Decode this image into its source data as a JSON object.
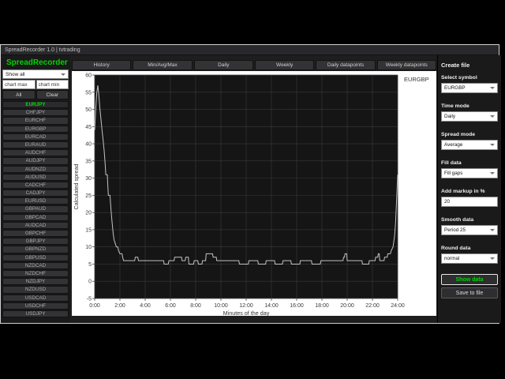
{
  "window": {
    "title": "SpreadRecorder 1.0 | tvtrading",
    "app_title": "SpreadRecorder"
  },
  "colors": {
    "accent_green": "#00d400",
    "titlebar_bg": "#29292d",
    "window_bg": "#1e1e1e",
    "chart_margin_bg": "#ffffff",
    "plot_bg": "#151515",
    "grid_color": "#3a3a3a",
    "line_color": "#c4c4c4",
    "tick_label_color": "#3c3c3c"
  },
  "left_panel": {
    "filter_dropdown": {
      "value": "Show all"
    },
    "chart_max_placeholder": "chart max",
    "chart_min_placeholder": "chart min",
    "all_button": "All",
    "clear_button": "Clear",
    "selected_symbol": "EURJPY",
    "symbols": [
      "EURJPY",
      "CHFJPY",
      "EURCHF",
      "EURGBP",
      "EURCAD",
      "EURAUD",
      "AUDCHF",
      "AUDJPY",
      "AUDNZD",
      "AUDUSD",
      "CADCHF",
      "CADJPY",
      "EURUSD",
      "GBPAUD",
      "GBPCAD",
      "AUDCAD",
      "GBPCHF",
      "GBPJPY",
      "GBPNZD",
      "GBPUSD",
      "NZDCAD",
      "NZDCHF",
      "NZDJPY",
      "NZDUSD",
      "USDCAD",
      "USDCHF",
      "USDJPY"
    ]
  },
  "tabs": [
    "History",
    "Min/Avg/Max",
    "Daily",
    "Weekly",
    "Daily datapoints",
    "Weekly datapoints"
  ],
  "chart_data": {
    "type": "line",
    "legend": "EURGBP",
    "legend_position": "top-right",
    "xlabel": "Minutes of the day",
    "ylabel": "Calculated spread",
    "xlim": [
      0,
      24
    ],
    "ylim": [
      -5,
      60
    ],
    "grid": true,
    "x_tick_hours": [
      0,
      2,
      4,
      6,
      8,
      10,
      12,
      14,
      16,
      18,
      20,
      22,
      24
    ],
    "x_tick_labels": [
      "0:00",
      "2:00",
      "4:00",
      "6:00",
      "8:00",
      "10:00",
      "12:00",
      "14:00",
      "16:00",
      "18:00",
      "20:00",
      "22:00",
      "24:00"
    ],
    "y_ticks": [
      60,
      55,
      50,
      45,
      40,
      35,
      30,
      25,
      20,
      15,
      10,
      5,
      0,
      -5
    ],
    "series": [
      {
        "name": "EURGBP",
        "points": [
          [
            0,
            44
          ],
          [
            0.08,
            50
          ],
          [
            0.17,
            55
          ],
          [
            0.25,
            57
          ],
          [
            0.33,
            54
          ],
          [
            0.42,
            50
          ],
          [
            0.5,
            47
          ],
          [
            0.58,
            44
          ],
          [
            0.67,
            41
          ],
          [
            0.75,
            38
          ],
          [
            0.83,
            34
          ],
          [
            0.88,
            31
          ],
          [
            1.0,
            31
          ],
          [
            1.04,
            28
          ],
          [
            1.08,
            25
          ],
          [
            1.21,
            25
          ],
          [
            1.29,
            21
          ],
          [
            1.38,
            17
          ],
          [
            1.46,
            14
          ],
          [
            1.54,
            12
          ],
          [
            1.63,
            11
          ],
          [
            1.71,
            10
          ],
          [
            1.83,
            10
          ],
          [
            1.88,
            9
          ],
          [
            2.0,
            8
          ],
          [
            2.17,
            8
          ],
          [
            2.21,
            7
          ],
          [
            2.29,
            6
          ],
          [
            3.17,
            6
          ],
          [
            3.21,
            7
          ],
          [
            3.42,
            7
          ],
          [
            3.46,
            6
          ],
          [
            5.46,
            6
          ],
          [
            5.5,
            5
          ],
          [
            5.83,
            5
          ],
          [
            5.88,
            6
          ],
          [
            6.29,
            6
          ],
          [
            6.33,
            7
          ],
          [
            6.88,
            7
          ],
          [
            6.92,
            6
          ],
          [
            7.17,
            6
          ],
          [
            7.21,
            7
          ],
          [
            7.42,
            7
          ],
          [
            7.46,
            5
          ],
          [
            7.83,
            5
          ],
          [
            7.88,
            6
          ],
          [
            8.17,
            6
          ],
          [
            8.21,
            5
          ],
          [
            8.5,
            5
          ],
          [
            8.54,
            6
          ],
          [
            8.79,
            6
          ],
          [
            8.83,
            8
          ],
          [
            9.33,
            8
          ],
          [
            9.38,
            7
          ],
          [
            9.63,
            7
          ],
          [
            9.67,
            6
          ],
          [
            10.25,
            6
          ],
          [
            11.42,
            6
          ],
          [
            11.46,
            5
          ],
          [
            12.17,
            5
          ],
          [
            12.21,
            6
          ],
          [
            12.92,
            6
          ],
          [
            12.96,
            5
          ],
          [
            13.54,
            5
          ],
          [
            13.58,
            6
          ],
          [
            14.25,
            6
          ],
          [
            14.29,
            5
          ],
          [
            14.87,
            5
          ],
          [
            14.92,
            6
          ],
          [
            15.54,
            6
          ],
          [
            15.58,
            5
          ],
          [
            16.25,
            5
          ],
          [
            16.29,
            6
          ],
          [
            17.17,
            6
          ],
          [
            17.21,
            5
          ],
          [
            17.87,
            5
          ],
          [
            17.92,
            6
          ],
          [
            19.67,
            6
          ],
          [
            19.71,
            7
          ],
          [
            19.79,
            7
          ],
          [
            19.83,
            8
          ],
          [
            19.96,
            8
          ],
          [
            20.0,
            6
          ],
          [
            21.17,
            6
          ],
          [
            21.21,
            5
          ],
          [
            21.71,
            5
          ],
          [
            21.75,
            6
          ],
          [
            22.21,
            6
          ],
          [
            22.25,
            7
          ],
          [
            22.42,
            7
          ],
          [
            22.46,
            8
          ],
          [
            22.54,
            8
          ],
          [
            22.58,
            6
          ],
          [
            22.92,
            6
          ],
          [
            22.96,
            7
          ],
          [
            23.17,
            7
          ],
          [
            23.21,
            8
          ],
          [
            23.42,
            8
          ],
          [
            23.5,
            9
          ],
          [
            23.63,
            10
          ],
          [
            23.75,
            13
          ],
          [
            23.83,
            17
          ],
          [
            23.92,
            24
          ],
          [
            24,
            31
          ]
        ]
      }
    ]
  },
  "right_panel": {
    "title": "Create file",
    "fields": [
      {
        "label": "Select symbol",
        "value": "EURGBP",
        "type": "select"
      },
      {
        "label": "Time mode",
        "value": "Daily",
        "type": "select"
      },
      {
        "label": "Spread mode",
        "value": "Average",
        "type": "select"
      },
      {
        "label": "Fill data",
        "value": "Fill gaps",
        "type": "select"
      },
      {
        "label": "Add markup in %",
        "value": "20",
        "type": "input"
      },
      {
        "label": "Smooth data",
        "value": "Period 25",
        "type": "select"
      },
      {
        "label": "Round data",
        "value": "normal",
        "type": "select"
      }
    ],
    "show_data_button": "Show data",
    "save_button": "Save to file"
  }
}
